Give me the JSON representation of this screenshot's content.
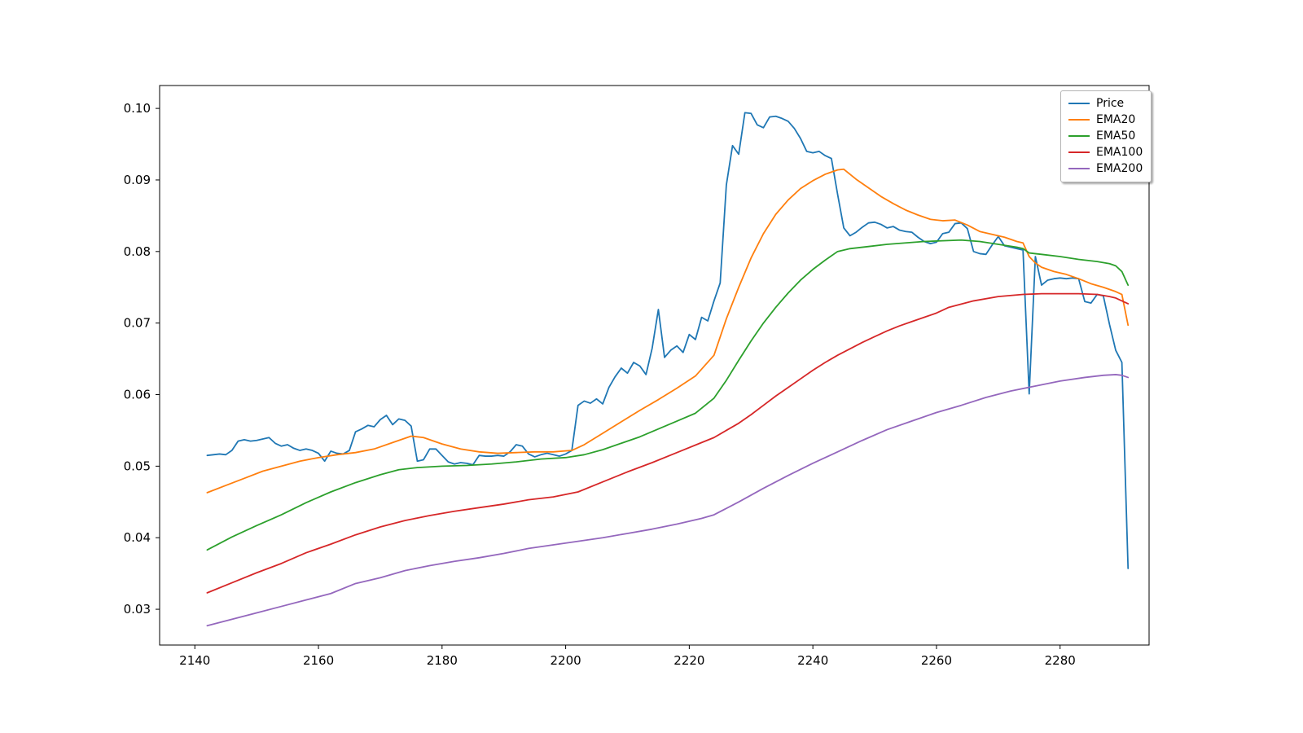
{
  "figure": {
    "background": "#ffffff"
  },
  "legend": {
    "position": "upper-right"
  },
  "chart_data": {
    "type": "line",
    "title": "",
    "xlabel": "",
    "ylabel": "",
    "grid": false,
    "xlim": [
      2134.3,
      2294.4
    ],
    "ylim": [
      0.025,
      0.1032
    ],
    "x_ticks": [
      2140,
      2160,
      2180,
      2200,
      2220,
      2240,
      2260,
      2280
    ],
    "x_tick_labels": [
      "2140",
      "2160",
      "2180",
      "2200",
      "2220",
      "2240",
      "2260",
      "2280"
    ],
    "y_ticks": [
      0.03,
      0.04,
      0.05,
      0.06,
      0.07,
      0.08,
      0.09,
      0.1
    ],
    "y_tick_labels": [
      "0.03",
      "0.04",
      "0.05",
      "0.06",
      "0.07",
      "0.08",
      "0.09",
      "0.10"
    ],
    "legend_entries": [
      "Price",
      "EMA20",
      "EMA50",
      "EMA100",
      "EMA200"
    ],
    "series": [
      {
        "name": "Price",
        "color": "#1f77b4",
        "x_start": 2142,
        "x_step": 1,
        "values": [
          0.0515,
          0.0516,
          0.0517,
          0.0516,
          0.0522,
          0.0535,
          0.0537,
          0.0535,
          0.0536,
          0.0538,
          0.054,
          0.0532,
          0.0528,
          0.053,
          0.0525,
          0.0522,
          0.0524,
          0.0522,
          0.0518,
          0.0507,
          0.0521,
          0.0518,
          0.0517,
          0.0522,
          0.0548,
          0.0552,
          0.0557,
          0.0555,
          0.0565,
          0.0571,
          0.0558,
          0.0566,
          0.0564,
          0.0556,
          0.0507,
          0.0509,
          0.0524,
          0.0524,
          0.0515,
          0.0506,
          0.0503,
          0.0505,
          0.0504,
          0.0502,
          0.0515,
          0.0514,
          0.0514,
          0.0515,
          0.0514,
          0.052,
          0.053,
          0.0528,
          0.0517,
          0.0513,
          0.0516,
          0.0518,
          0.0516,
          0.0514,
          0.0517,
          0.0522,
          0.0585,
          0.0591,
          0.0588,
          0.0594,
          0.0587,
          0.061,
          0.0625,
          0.0637,
          0.063,
          0.0645,
          0.064,
          0.0628,
          0.0665,
          0.0719,
          0.0652,
          0.0662,
          0.0668,
          0.0659,
          0.0684,
          0.0677,
          0.0708,
          0.0703,
          0.0731,
          0.0756,
          0.0893,
          0.0948,
          0.0936,
          0.0994,
          0.0993,
          0.0977,
          0.0973,
          0.0988,
          0.0989,
          0.0986,
          0.0982,
          0.0972,
          0.0958,
          0.094,
          0.0938,
          0.094,
          0.0934,
          0.093,
          0.088,
          0.0833,
          0.0822,
          0.0827,
          0.0834,
          0.084,
          0.0841,
          0.0838,
          0.0833,
          0.0835,
          0.083,
          0.0828,
          0.0827,
          0.082,
          0.0814,
          0.0811,
          0.0813,
          0.0825,
          0.0827,
          0.0839,
          0.084,
          0.0832,
          0.08,
          0.0797,
          0.0796,
          0.0809,
          0.0821,
          0.0808,
          0.0806,
          0.0804,
          0.0802,
          0.0601,
          0.0793,
          0.0753,
          0.076,
          0.0762,
          0.0763,
          0.0762,
          0.0763,
          0.0762,
          0.073,
          0.0728,
          0.074,
          0.0738,
          0.0698,
          0.0662,
          0.0645,
          0.0357
        ]
      },
      {
        "name": "EMA20",
        "color": "#ff7f0e",
        "points": [
          [
            2142,
            0.0463
          ],
          [
            2145,
            0.0473
          ],
          [
            2148,
            0.0483
          ],
          [
            2151,
            0.0493
          ],
          [
            2154,
            0.05
          ],
          [
            2157,
            0.0507
          ],
          [
            2160,
            0.0512
          ],
          [
            2163,
            0.0516
          ],
          [
            2166,
            0.0519
          ],
          [
            2169,
            0.0524
          ],
          [
            2172,
            0.0533
          ],
          [
            2175,
            0.0542
          ],
          [
            2177,
            0.054
          ],
          [
            2180,
            0.0531
          ],
          [
            2183,
            0.0524
          ],
          [
            2186,
            0.052
          ],
          [
            2189,
            0.0518
          ],
          [
            2192,
            0.0519
          ],
          [
            2195,
            0.052
          ],
          [
            2198,
            0.052
          ],
          [
            2201,
            0.0522
          ],
          [
            2203,
            0.053
          ],
          [
            2206,
            0.0546
          ],
          [
            2209,
            0.0562
          ],
          [
            2212,
            0.0578
          ],
          [
            2215,
            0.0593
          ],
          [
            2218,
            0.0609
          ],
          [
            2221,
            0.0626
          ],
          [
            2224,
            0.0655
          ],
          [
            2226,
            0.0706
          ],
          [
            2228,
            0.075
          ],
          [
            2230,
            0.0791
          ],
          [
            2232,
            0.0825
          ],
          [
            2234,
            0.0852
          ],
          [
            2236,
            0.0872
          ],
          [
            2238,
            0.0888
          ],
          [
            2240,
            0.0899
          ],
          [
            2242,
            0.0908
          ],
          [
            2244,
            0.0914
          ],
          [
            2245,
            0.0915
          ],
          [
            2247,
            0.0901
          ],
          [
            2249,
            0.0889
          ],
          [
            2251,
            0.0877
          ],
          [
            2253,
            0.0867
          ],
          [
            2255,
            0.0858
          ],
          [
            2257,
            0.0851
          ],
          [
            2259,
            0.0845
          ],
          [
            2261,
            0.0843
          ],
          [
            2263,
            0.0844
          ],
          [
            2265,
            0.0837
          ],
          [
            2267,
            0.0828
          ],
          [
            2269,
            0.0824
          ],
          [
            2271,
            0.082
          ],
          [
            2273,
            0.0814
          ],
          [
            2274,
            0.0812
          ],
          [
            2275,
            0.0793
          ],
          [
            2276,
            0.0784
          ],
          [
            2277,
            0.0778
          ],
          [
            2279,
            0.0772
          ],
          [
            2281,
            0.0768
          ],
          [
            2283,
            0.0762
          ],
          [
            2285,
            0.0755
          ],
          [
            2287,
            0.075
          ],
          [
            2289,
            0.0744
          ],
          [
            2290,
            0.074
          ],
          [
            2291,
            0.0697
          ]
        ]
      },
      {
        "name": "EMA50",
        "color": "#2ca02c",
        "points": [
          [
            2142,
            0.0383
          ],
          [
            2146,
            0.0401
          ],
          [
            2150,
            0.0417
          ],
          [
            2154,
            0.0432
          ],
          [
            2158,
            0.0449
          ],
          [
            2162,
            0.0464
          ],
          [
            2166,
            0.0477
          ],
          [
            2170,
            0.0488
          ],
          [
            2173,
            0.0495
          ],
          [
            2176,
            0.0498
          ],
          [
            2180,
            0.05
          ],
          [
            2184,
            0.0501
          ],
          [
            2188,
            0.0503
          ],
          [
            2192,
            0.0506
          ],
          [
            2196,
            0.051
          ],
          [
            2200,
            0.0512
          ],
          [
            2203,
            0.0516
          ],
          [
            2206,
            0.0523
          ],
          [
            2209,
            0.0532
          ],
          [
            2212,
            0.0541
          ],
          [
            2215,
            0.0552
          ],
          [
            2218,
            0.0563
          ],
          [
            2221,
            0.0574
          ],
          [
            2224,
            0.0595
          ],
          [
            2226,
            0.062
          ],
          [
            2228,
            0.0648
          ],
          [
            2230,
            0.0675
          ],
          [
            2232,
            0.07
          ],
          [
            2234,
            0.0722
          ],
          [
            2236,
            0.0742
          ],
          [
            2238,
            0.076
          ],
          [
            2240,
            0.0775
          ],
          [
            2242,
            0.0788
          ],
          [
            2244,
            0.08
          ],
          [
            2246,
            0.0804
          ],
          [
            2249,
            0.0807
          ],
          [
            2252,
            0.081
          ],
          [
            2255,
            0.0812
          ],
          [
            2258,
            0.0814
          ],
          [
            2261,
            0.0815
          ],
          [
            2264,
            0.0816
          ],
          [
            2267,
            0.0814
          ],
          [
            2270,
            0.081
          ],
          [
            2273,
            0.0806
          ],
          [
            2274,
            0.0804
          ],
          [
            2275,
            0.0798
          ],
          [
            2277,
            0.0796
          ],
          [
            2280,
            0.0793
          ],
          [
            2283,
            0.0789
          ],
          [
            2286,
            0.0786
          ],
          [
            2288,
            0.0783
          ],
          [
            2289,
            0.078
          ],
          [
            2290,
            0.0772
          ],
          [
            2291,
            0.0753
          ]
        ]
      },
      {
        "name": "EMA100",
        "color": "#d62728",
        "points": [
          [
            2142,
            0.0323
          ],
          [
            2146,
            0.0337
          ],
          [
            2150,
            0.0351
          ],
          [
            2154,
            0.0364
          ],
          [
            2158,
            0.0379
          ],
          [
            2162,
            0.0391
          ],
          [
            2166,
            0.0404
          ],
          [
            2170,
            0.0415
          ],
          [
            2174,
            0.0424
          ],
          [
            2178,
            0.0431
          ],
          [
            2182,
            0.0437
          ],
          [
            2186,
            0.0442
          ],
          [
            2190,
            0.0447
          ],
          [
            2194,
            0.0453
          ],
          [
            2198,
            0.0457
          ],
          [
            2202,
            0.0464
          ],
          [
            2206,
            0.0478
          ],
          [
            2210,
            0.0492
          ],
          [
            2214,
            0.0505
          ],
          [
            2218,
            0.0519
          ],
          [
            2222,
            0.0533
          ],
          [
            2224,
            0.054
          ],
          [
            2226,
            0.055
          ],
          [
            2228,
            0.056
          ],
          [
            2230,
            0.0572
          ],
          [
            2232,
            0.0585
          ],
          [
            2234,
            0.0598
          ],
          [
            2236,
            0.061
          ],
          [
            2238,
            0.0622
          ],
          [
            2240,
            0.0634
          ],
          [
            2242,
            0.0645
          ],
          [
            2244,
            0.0655
          ],
          [
            2246,
            0.0664
          ],
          [
            2248,
            0.0673
          ],
          [
            2250,
            0.0681
          ],
          [
            2252,
            0.0689
          ],
          [
            2254,
            0.0696
          ],
          [
            2256,
            0.0702
          ],
          [
            2258,
            0.0708
          ],
          [
            2260,
            0.0714
          ],
          [
            2262,
            0.0722
          ],
          [
            2266,
            0.0731
          ],
          [
            2270,
            0.0737
          ],
          [
            2274,
            0.074
          ],
          [
            2277,
            0.0741
          ],
          [
            2280,
            0.0741
          ],
          [
            2283,
            0.0741
          ],
          [
            2286,
            0.074
          ],
          [
            2288,
            0.0737
          ],
          [
            2289,
            0.0735
          ],
          [
            2290,
            0.0731
          ],
          [
            2291,
            0.0727
          ]
        ]
      },
      {
        "name": "EMA200",
        "color": "#9467bd",
        "points": [
          [
            2142,
            0.0277
          ],
          [
            2146,
            0.0286
          ],
          [
            2150,
            0.0295
          ],
          [
            2154,
            0.0304
          ],
          [
            2158,
            0.0313
          ],
          [
            2162,
            0.0322
          ],
          [
            2166,
            0.0336
          ],
          [
            2170,
            0.0344
          ],
          [
            2174,
            0.0354
          ],
          [
            2178,
            0.0361
          ],
          [
            2182,
            0.0367
          ],
          [
            2186,
            0.0372
          ],
          [
            2190,
            0.0378
          ],
          [
            2194,
            0.0385
          ],
          [
            2198,
            0.039
          ],
          [
            2202,
            0.0395
          ],
          [
            2206,
            0.04
          ],
          [
            2210,
            0.0406
          ],
          [
            2214,
            0.0412
          ],
          [
            2218,
            0.0419
          ],
          [
            2222,
            0.0427
          ],
          [
            2224,
            0.0432
          ],
          [
            2228,
            0.045
          ],
          [
            2232,
            0.0469
          ],
          [
            2236,
            0.0487
          ],
          [
            2240,
            0.0504
          ],
          [
            2244,
            0.052
          ],
          [
            2248,
            0.0536
          ],
          [
            2252,
            0.0551
          ],
          [
            2256,
            0.0563
          ],
          [
            2260,
            0.0575
          ],
          [
            2264,
            0.0585
          ],
          [
            2268,
            0.0596
          ],
          [
            2272,
            0.0605
          ],
          [
            2276,
            0.0612
          ],
          [
            2280,
            0.0619
          ],
          [
            2284,
            0.0624
          ],
          [
            2287,
            0.0627
          ],
          [
            2289,
            0.0628
          ],
          [
            2290,
            0.0627
          ],
          [
            2291,
            0.0624
          ]
        ]
      }
    ]
  }
}
